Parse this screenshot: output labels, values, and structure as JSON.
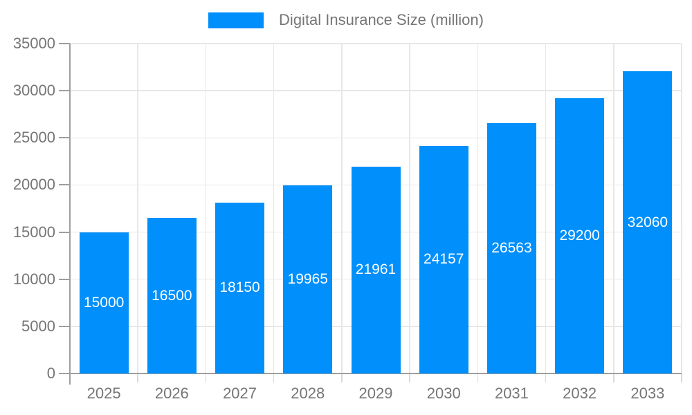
{
  "legend": {
    "label": "Digital Insurance Size (million)"
  },
  "chart_data": {
    "type": "bar",
    "title": "Digital Insurance Size (million)",
    "categories": [
      "2025",
      "2026",
      "2027",
      "2028",
      "2029",
      "2030",
      "2031",
      "2032",
      "2033"
    ],
    "series": [
      {
        "name": "Digital Insurance Size (million)",
        "values": [
          15000,
          16500,
          18150,
          19965,
          21961,
          24157,
          26563,
          29200,
          32060
        ]
      }
    ],
    "xlabel": "",
    "ylabel": "",
    "ylim": [
      0,
      35000
    ],
    "ytick_step": 5000,
    "grid": "both",
    "legend_position": "top-center",
    "bar_value_labels": "inside-center",
    "colors": {
      "bar": "#008FFB",
      "bar_label": "#FFFFFF",
      "axis_text": "#757575",
      "grid_line": "#E7E7E7",
      "axis_line": "#9E9E9E",
      "minor_tick": "#D9D9D9"
    }
  }
}
